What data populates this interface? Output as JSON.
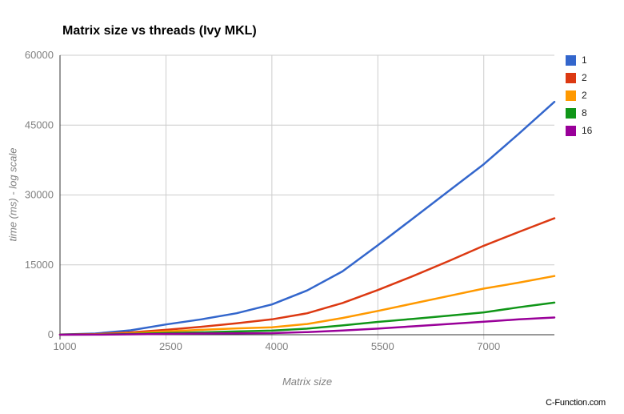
{
  "page": {
    "background": "#ffffff",
    "watermark": "C-Function.com"
  },
  "style": {
    "gridline_color": "#cccccc",
    "axis_line_color": "#333333",
    "tick_label_color": "#808080",
    "axis_title_color": "#808080",
    "legend_text_color": "#222222",
    "title_color": "#000000"
  },
  "chart_data": {
    "type": "line",
    "title": "Matrix size vs threads (Ivy MKL)",
    "xlabel": "Matrix size",
    "ylabel": "time (ms) - log scale",
    "xlim": [
      1000,
      8000
    ],
    "ylim": [
      0,
      60000
    ],
    "x_ticks": [
      1000,
      2500,
      4000,
      5500,
      7000
    ],
    "y_ticks": [
      0,
      15000,
      30000,
      45000,
      60000
    ],
    "grid": true,
    "legend_position": "right",
    "x": [
      1000,
      1500,
      2000,
      2500,
      3000,
      3500,
      4000,
      4500,
      5000,
      5500,
      6000,
      6500,
      7000,
      7500,
      8000
    ],
    "series": [
      {
        "name": "1",
        "color": "#3366CC",
        "values": [
          60,
          250,
          950,
          2200,
          3300,
          4600,
          6500,
          9500,
          13600,
          19200,
          25000,
          30800,
          36600,
          43200,
          50000
        ]
      },
      {
        "name": "2",
        "color": "#DC3912",
        "values": [
          40,
          120,
          500,
          1050,
          1700,
          2450,
          3300,
          4600,
          6800,
          9600,
          12600,
          15800,
          19100,
          22100,
          25000
        ]
      },
      {
        "name": "2",
        "color": "#FF9900",
        "values": [
          25,
          80,
          300,
          700,
          1050,
          1350,
          1600,
          2300,
          3600,
          5100,
          6700,
          8300,
          9900,
          11200,
          12600
        ]
      },
      {
        "name": "8",
        "color": "#109618",
        "values": [
          15,
          45,
          160,
          360,
          520,
          700,
          880,
          1300,
          2000,
          2750,
          3400,
          4100,
          4800,
          5900,
          6900
        ]
      },
      {
        "name": "16",
        "color": "#990099",
        "values": [
          8,
          25,
          90,
          175,
          260,
          310,
          350,
          560,
          900,
          1300,
          1800,
          2300,
          2800,
          3300,
          3700
        ]
      }
    ]
  }
}
